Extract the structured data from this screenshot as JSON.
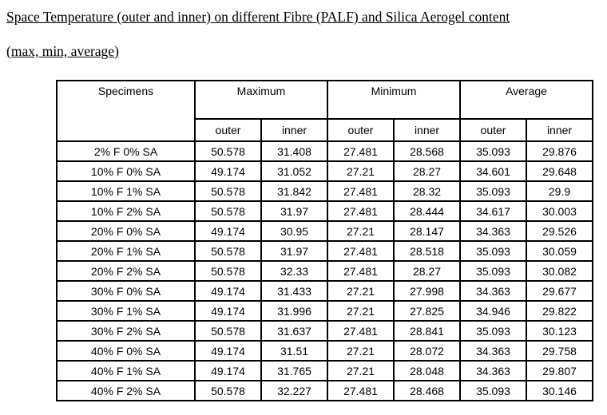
{
  "document": {
    "title_line1": "Space Temperature (outer and inner) on different Fibre (PALF) and Silica Aerogel content",
    "title_line2": "(max, min, average)"
  },
  "table": {
    "specimens_header": "Specimens",
    "group_headers": [
      "Maximum",
      "Minimum",
      "Average"
    ],
    "sub_headers": [
      "outer",
      "inner",
      "outer",
      "inner",
      "outer",
      "inner"
    ],
    "rows": [
      {
        "specimen": "2% F 0% SA",
        "values": [
          "50.578",
          "31.408",
          "27.481",
          "28.568",
          "35.093",
          "29.876"
        ]
      },
      {
        "specimen": "10% F 0% SA",
        "values": [
          "49.174",
          "31.052",
          "27.21",
          "28.27",
          "34.601",
          "29.648"
        ]
      },
      {
        "specimen": "10% F 1% SA",
        "values": [
          "50.578",
          "31.842",
          "27.481",
          "28.32",
          "35.093",
          "29.9"
        ]
      },
      {
        "specimen": "10% F 2% SA",
        "values": [
          "50.578",
          "31.97",
          "27.481",
          "28.444",
          "34.617",
          "30.003"
        ]
      },
      {
        "specimen": "20% F 0% SA",
        "values": [
          "49.174",
          "30.95",
          "27.21",
          "28.147",
          "34.363",
          "29.526"
        ]
      },
      {
        "specimen": "20% F 1% SA",
        "values": [
          "50.578",
          "31.97",
          "27.481",
          "28.518",
          "35.093",
          "30.059"
        ]
      },
      {
        "specimen": "20% F 2% SA",
        "values": [
          "50.578",
          "32.33",
          "27.481",
          "28.27",
          "35.093",
          "30.082"
        ]
      },
      {
        "specimen": "30% F 0% SA",
        "values": [
          "49.174",
          "31.433",
          "27.21",
          "27.998",
          "34.363",
          "29.677"
        ]
      },
      {
        "specimen": "30% F 1% SA",
        "values": [
          "49.174",
          "31.996",
          "27.21",
          "27.825",
          "34.946",
          "29.822"
        ]
      },
      {
        "specimen": "30% F 2% SA",
        "values": [
          "50.578",
          "31.637",
          "27.481",
          "28.841",
          "35.093",
          "30.123"
        ]
      },
      {
        "specimen": "40% F 0% SA",
        "values": [
          "49.174",
          "31.51",
          "27.21",
          "28.072",
          "34.363",
          "29.758"
        ]
      },
      {
        "specimen": "40% F 1% SA",
        "values": [
          "49.174",
          "31.765",
          "27.21",
          "28.048",
          "34.363",
          "29.807"
        ]
      },
      {
        "specimen": "40% F 2% SA",
        "values": [
          "50.578",
          "32.227",
          "27.481",
          "28.468",
          "35.093",
          "30.146"
        ]
      }
    ]
  }
}
